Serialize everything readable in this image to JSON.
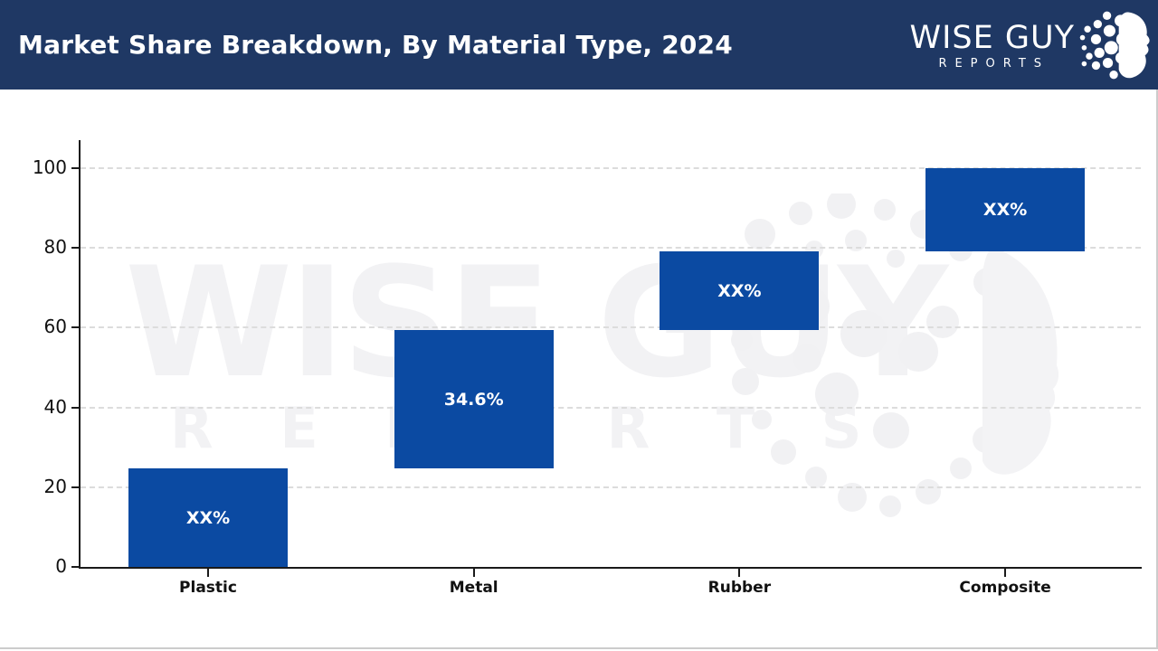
{
  "header": {
    "title": "Market Share Breakdown, By Material Type, 2024",
    "logo": {
      "line1": "WISE GUY",
      "line2": "REPORTS"
    }
  },
  "watermark": {
    "line1": "WISE GUY",
    "line2": "R E P O R T S"
  },
  "colors": {
    "header_bg": "#1F3864",
    "bar": "#0B4AA2",
    "bar_label": "#FFFFFF",
    "gridline": "#DCDCDC",
    "axis": "#1A1A1A",
    "watermark": "#F2F2F4"
  },
  "chart_data": {
    "type": "waterfall",
    "title": "Market Share Breakdown, By Material Type, 2024",
    "categories": [
      "Plastic",
      "Metal",
      "Rubber",
      "Composite"
    ],
    "bars": [
      {
        "category": "Plastic",
        "start": 0,
        "end": 24.7,
        "value": 24.7,
        "label": "XX%"
      },
      {
        "category": "Metal",
        "start": 24.7,
        "end": 59.3,
        "value": 34.6,
        "label": "34.6%"
      },
      {
        "category": "Rubber",
        "start": 59.3,
        "end": 79.1,
        "value": 19.8,
        "label": "XX%"
      },
      {
        "category": "Composite",
        "start": 79.1,
        "end": 100,
        "value": 20.9,
        "label": "XX%"
      }
    ],
    "xlabel": "",
    "ylabel": "",
    "yticks": [
      0,
      20,
      40,
      60,
      80,
      100
    ],
    "ylim": [
      0,
      107
    ],
    "grid": "horizontal dashed at 20/40/60/80/100",
    "legend": "none"
  }
}
